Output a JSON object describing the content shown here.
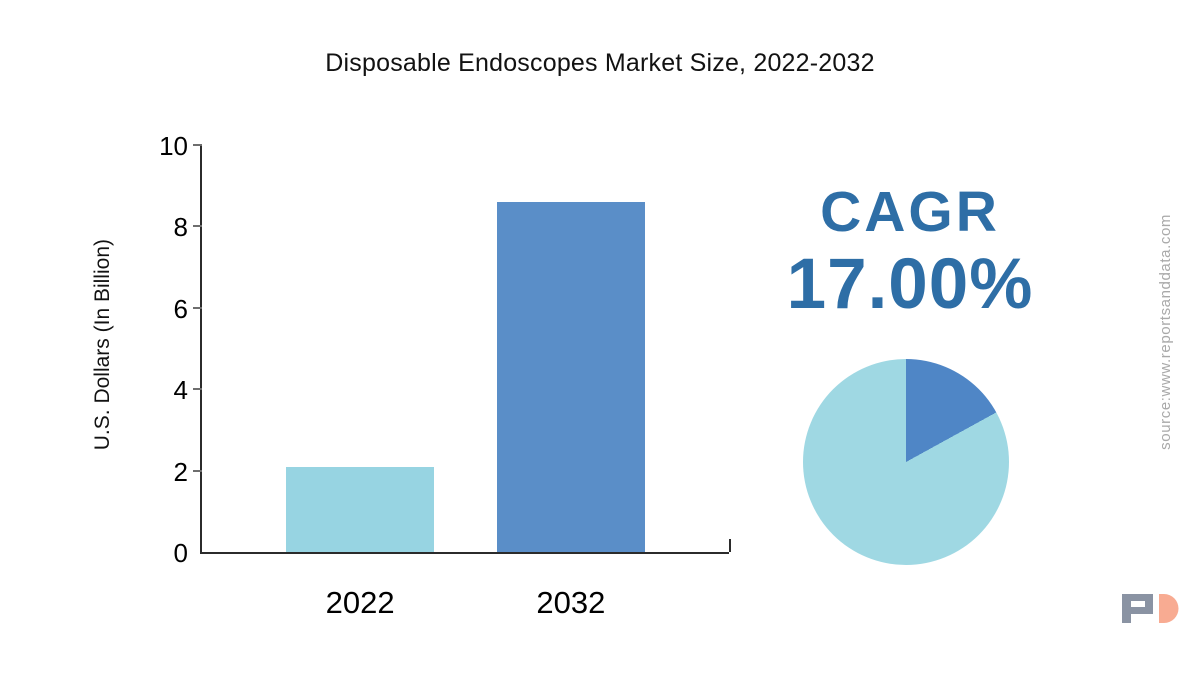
{
  "title": "Disposable Endoscopes Market Size, 2022-2032",
  "cagr": {
    "label": "CAGR",
    "value": "17.00%"
  },
  "source": "source:www.reportsanddata.com",
  "chart_data": [
    {
      "type": "bar",
      "categories": [
        "2022",
        "2032"
      ],
      "values": [
        2.1,
        8.6
      ],
      "title": "Disposable Endoscopes Market Size, 2022-2032",
      "xlabel": "",
      "ylabel": "U.S. Dollars (In Billion)",
      "ylim": [
        0,
        10
      ],
      "yticks": [
        0,
        2,
        4,
        6,
        8,
        10
      ],
      "bar_colors": [
        "#97d4e2",
        "#5a8ec8"
      ],
      "grid": false,
      "legend": false
    },
    {
      "type": "pie",
      "labels": [
        "cagr-share",
        "remainder"
      ],
      "values": [
        17,
        83
      ],
      "colors": [
        "#4f86c6",
        "#9fd8e3"
      ],
      "start_angle": "12 o'clock",
      "direction": "clockwise"
    }
  ],
  "colors": {
    "accent_blue": "#2e6ea6",
    "axis": "#2b2b2b",
    "tick": "#6e6e6e",
    "bar_2022": "#97d4e2",
    "bar_2032": "#5a8ec8",
    "pie_slice": "#4f86c6",
    "pie_rest": "#9fd8e3",
    "source_text": "#a9a9a9",
    "logo_gray": "#8a93a3",
    "logo_salmon": "#f8ab92"
  }
}
